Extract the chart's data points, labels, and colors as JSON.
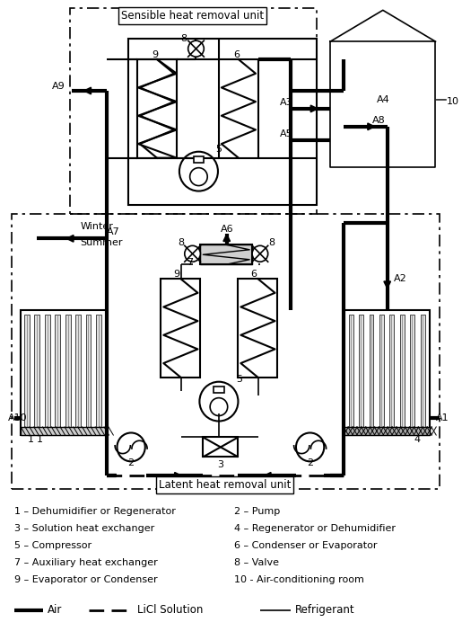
{
  "background_color": "#ffffff",
  "line_color": "#000000",
  "component_labels": [
    [
      "1 – Dehumidifier or Regenerator",
      "2 – Pump"
    ],
    [
      "3 – Solution heat exchanger",
      "4 – Regenerator or Dehumidifier"
    ],
    [
      "5 – Compressor",
      "6 – Condenser or Evaporator"
    ],
    [
      "7 – Auxiliary heat exchanger",
      "8 – Valve"
    ],
    [
      "9 – Evaporator or Condenser",
      "10 - Air-conditioning room"
    ]
  ],
  "sensible_box_label": "Sensible heat removal unit",
  "latent_box_label": "Latent heat removal unit",
  "winter_label": "Winter",
  "summer_label": "Summer"
}
